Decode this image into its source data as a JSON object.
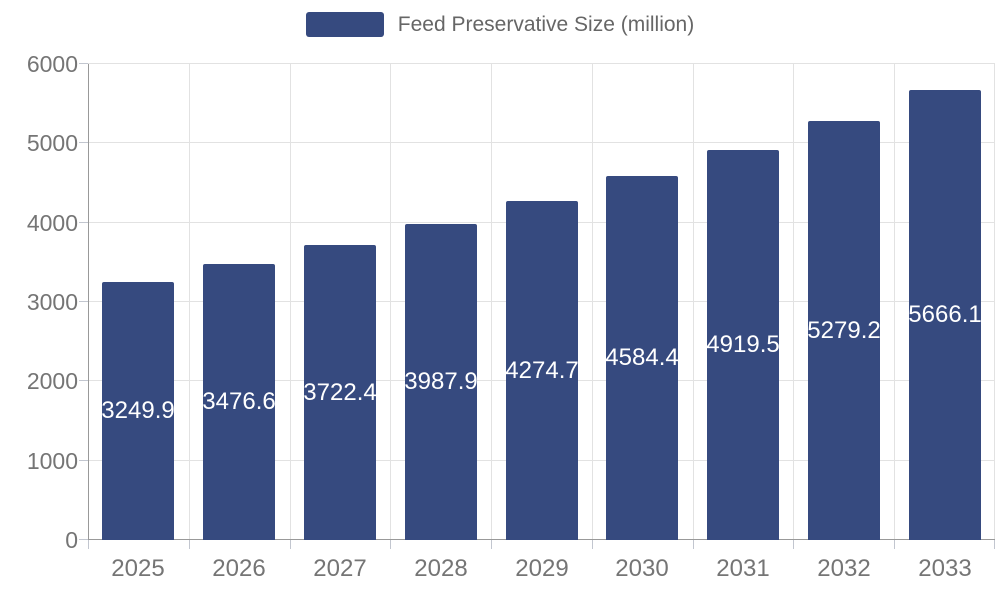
{
  "legend": {
    "label": "Feed Preservative Size (million)"
  },
  "chart_data": {
    "type": "bar",
    "title": "",
    "legend": [
      "Feed Preservative Size (million)"
    ],
    "legend_position": "top-center",
    "categories": [
      "2025",
      "2026",
      "2027",
      "2028",
      "2029",
      "2030",
      "2031",
      "2032",
      "2033"
    ],
    "series": [
      {
        "name": "Feed Preservative Size (million)",
        "values": [
          3249.9,
          3476.6,
          3722.4,
          3987.9,
          4274.7,
          4584.4,
          4919.5,
          5279.2,
          5666.1
        ],
        "color": "#364A7F",
        "value_label_color": "#FFFFFF",
        "value_label_position": "inside-center"
      }
    ],
    "xlabel": "",
    "ylabel": "",
    "ylim": [
      0,
      6000
    ],
    "yticks": [
      0,
      1000,
      2000,
      3000,
      4000,
      5000,
      6000
    ],
    "grid": true
  },
  "colors": {
    "bar": "#364A7F",
    "grid_line": "#E2E2E2",
    "axis_line": "#999999",
    "tick_mark": "#C2C6CF",
    "axis_label": "#757575",
    "legend_text": "#666666",
    "bar_value_text": "#FFFFFF",
    "background": "#FFFFFF"
  }
}
